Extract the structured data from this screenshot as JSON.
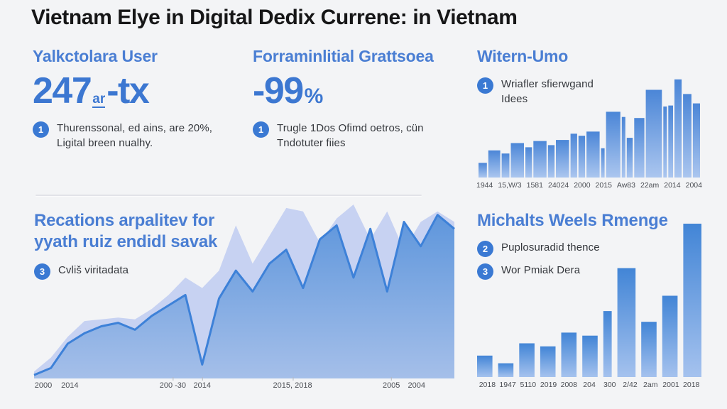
{
  "page": {
    "title": "Vietnam Elye in Digital Dedix Currene: in Vietnam"
  },
  "palette": {
    "background": "#f3f4f6",
    "title_text": "#161617",
    "accent_heading": "#4a7ed3",
    "accent_stat": "#3c77d1",
    "badge_blue": "#3a79d3",
    "body_text": "#35383d",
    "axis_text": "#4b4e54",
    "divider": "#e2e3e8"
  },
  "stats": [
    {
      "heading": "Yalkctolara User",
      "value_main": "247",
      "value_sub": "ar",
      "value_tail": "-tx",
      "bullet": {
        "num": "1",
        "text": "Thurenssonal, ed ains, are 20%, Ligital breen nualhy."
      }
    },
    {
      "heading": "Forraminlitial Grattsoea",
      "value_main": "-99",
      "value_sub": "%",
      "value_tail": "",
      "bullet": {
        "num": "1",
        "text": "Trugle 1Dos Ofimd oetros, cün Tndotuter fiies"
      }
    }
  ],
  "top_right": {
    "heading": "Witern-Umo",
    "bullet": {
      "num": "1",
      "text": "Wriafler sfierwgand Idees"
    }
  },
  "bottom_left": {
    "heading_line1": "Recations arpalitev for",
    "heading_line2": "yyath ruiz endidl savak",
    "bullet": {
      "num": "3",
      "text": "Cvliš viritadata"
    }
  },
  "bottom_right": {
    "heading": "Michalts Weels Rmenge",
    "bullets": [
      {
        "num": "2",
        "text": "Puplosuradid thence"
      },
      {
        "num": "3",
        "text": "Wor Pmiak Dera"
      }
    ]
  },
  "chart_data": [
    {
      "id": "chart-top-right",
      "type": "bar",
      "title": "Witern-Umo bar series",
      "gap": 2,
      "ylim": [
        0,
        100
      ],
      "values": [
        14,
        26,
        23,
        33,
        29,
        35,
        31,
        36,
        42,
        40,
        44,
        28,
        63,
        58,
        38,
        57,
        84,
        68,
        69,
        94,
        80,
        71
      ],
      "widths": [
        14,
        20,
        13,
        22,
        11,
        22,
        11,
        22,
        11,
        11,
        22,
        6,
        24,
        6,
        10,
        17,
        27,
        6,
        8,
        12,
        14,
        12
      ],
      "tick_labels": [
        "1944",
        "15,W/3",
        "1581",
        "24024",
        "2000",
        "2015",
        "Aw83",
        "22am",
        "2014",
        "2004"
      ],
      "colors": {
        "top": "#4b86d7",
        "bottom": "#abc6ef"
      }
    },
    {
      "id": "chart-area",
      "type": "area",
      "title": "Recations area series",
      "ylim": [
        0,
        100
      ],
      "series": [
        {
          "name": "background-band",
          "fill": "#c7d2f2",
          "values": [
            4,
            12,
            24,
            33,
            34,
            35,
            34,
            40,
            48,
            58,
            52,
            62,
            88,
            66,
            82,
            98,
            96,
            78,
            92,
            100,
            80,
            96,
            74,
            90,
            96,
            90
          ]
        },
        {
          "name": "foreground-band",
          "fill_top": "#5e96dc",
          "fill_bottom": "#a5bfe9",
          "stroke": "#3d81d8",
          "values": [
            2,
            6,
            20,
            26,
            30,
            32,
            28,
            36,
            42,
            48,
            8,
            46,
            62,
            50,
            66,
            74,
            52,
            80,
            88,
            58,
            86,
            50,
            90,
            76,
            94,
            86
          ]
        }
      ],
      "tick_labels": [
        {
          "t": "2000",
          "p": 0.022
        },
        {
          "t": "2014",
          "p": 0.085
        },
        {
          "t": "200 -30",
          "p": 0.33,
          "tick": true
        },
        {
          "t": "2014",
          "p": 0.4,
          "tick": true
        },
        {
          "t": "2015, 2018",
          "p": 0.615,
          "tick": true
        },
        {
          "t": "2005",
          "p": 0.85,
          "tick": true
        },
        {
          "t": "2004",
          "p": 0.91
        }
      ]
    },
    {
      "id": "chart-bottom-right",
      "type": "bar",
      "title": "Michalts bar series",
      "gap": 8,
      "ylim": [
        0,
        100
      ],
      "values": [
        14,
        9,
        22,
        20,
        29,
        27,
        43,
        71,
        36,
        53,
        100
      ],
      "widths": [
        22,
        22,
        22,
        22,
        22,
        22,
        12,
        26,
        22,
        22,
        26
      ],
      "tick_labels": [
        "2018",
        "1947",
        "5110",
        "2019",
        "2008",
        "204",
        "300",
        "2/42",
        "2am",
        "2001",
        "2018"
      ],
      "colors": {
        "top": "#4285d6",
        "bottom": "#a5c2ee"
      }
    }
  ]
}
